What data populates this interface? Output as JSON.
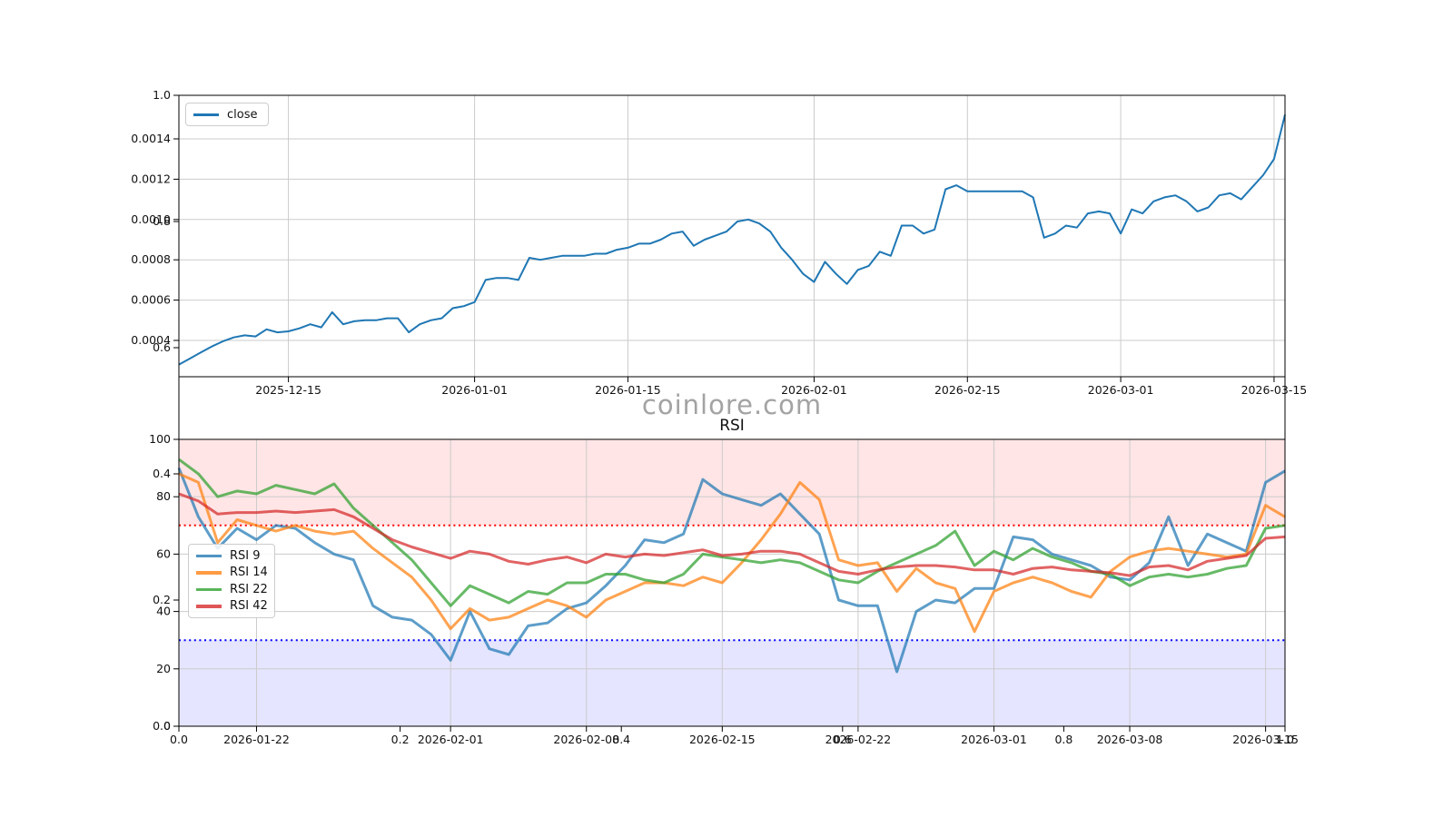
{
  "watermark": "coinlore.com",
  "overlay_axis": {
    "y_tick_labels": [
      "1.0",
      "0.8",
      "0.6",
      "0.4",
      "0.2",
      "0.0"
    ],
    "x_tick_labels": [
      "0.0",
      "0.2",
      "0.4",
      "0.6",
      "0.8",
      "1.0"
    ]
  },
  "chart_data": [
    {
      "type": "line",
      "name": "price-chart",
      "x_start_date": "2025-12-05",
      "x_interval": "1 day",
      "x_tick_labels": [
        "2025-12-15",
        "2026-01-01",
        "2026-01-15",
        "2026-02-01",
        "2026-02-15",
        "2026-03-01",
        "2026-03-15"
      ],
      "x_tick_day_offsets": [
        10,
        27,
        41,
        58,
        72,
        86,
        100
      ],
      "y_tick_labels": [
        "0.0014",
        "0.0012",
        "0.0010",
        "0.0008",
        "0.0006",
        "0.0004"
      ],
      "y_tick_values": [
        0.0014,
        0.0012,
        0.001,
        0.0008,
        0.0006,
        0.0004
      ],
      "ylim": [
        0.000225,
        0.001617
      ],
      "grid": true,
      "legend_position": "upper-left",
      "series": [
        {
          "name": "close",
          "color": "#1f77b4",
          "values": [
            0.00028,
            0.00031,
            0.00034,
            0.00037,
            0.000395,
            0.000415,
            0.000425,
            0.00042,
            0.000455,
            0.00044,
            0.000445,
            0.00046,
            0.00048,
            0.000465,
            0.00054,
            0.00048,
            0.000495,
            0.0005,
            0.0005,
            0.00051,
            0.00051,
            0.00044,
            0.00048,
            0.0005,
            0.00051,
            0.00056,
            0.00057,
            0.00059,
            0.0007,
            0.00071,
            0.00071,
            0.0007,
            0.00081,
            0.0008,
            0.00081,
            0.00082,
            0.00082,
            0.00082,
            0.00083,
            0.00083,
            0.00085,
            0.00086,
            0.00088,
            0.00088,
            0.0009,
            0.00093,
            0.00094,
            0.00087,
            0.0009,
            0.00092,
            0.00094,
            0.00099,
            0.001,
            0.00098,
            0.00094,
            0.00086,
            0.0008,
            0.00073,
            0.00069,
            0.00079,
            0.00073,
            0.00068,
            0.00075,
            0.00077,
            0.00084,
            0.00082,
            0.00097,
            0.00097,
            0.00093,
            0.00095,
            0.00115,
            0.00117,
            0.00114,
            0.00114,
            0.00114,
            0.00114,
            0.00114,
            0.00114,
            0.00111,
            0.00091,
            0.00093,
            0.00097,
            0.00096,
            0.00103,
            0.00104,
            0.00103,
            0.00093,
            0.00105,
            0.00103,
            0.00109,
            0.00111,
            0.00112,
            0.00109,
            0.00104,
            0.00106,
            0.00112,
            0.00113,
            0.0011,
            0.00116,
            0.00122,
            0.0013,
            0.00152
          ]
        }
      ]
    },
    {
      "type": "line",
      "name": "rsi-chart",
      "title": "RSI",
      "x_start_date": "2026-01-18",
      "x_interval": "1 day",
      "x_tick_labels": [
        "2026-01-22",
        "2026-02-01",
        "2026-02-08",
        "2026-02-15",
        "2026-02-22",
        "2026-03-01",
        "2026-03-08",
        "2026-03-15"
      ],
      "x_tick_day_offsets": [
        4,
        14,
        21,
        28,
        35,
        42,
        49,
        56
      ],
      "y_tick_labels": [
        "100",
        "80",
        "60",
        "40",
        "20",
        "0"
      ],
      "y_tick_values": [
        100,
        80,
        60,
        40,
        20,
        0
      ],
      "ylim": [
        0,
        100
      ],
      "grid": true,
      "overbought_level": 70,
      "oversold_level": 30,
      "overbought_band": [
        70,
        100
      ],
      "oversold_band": [
        0,
        30
      ],
      "band_colors": {
        "overbought": "rgba(255,0,0,0.10)",
        "oversold": "rgba(0,0,255,0.10)"
      },
      "ref_line_colors": {
        "overbought": "#ff0000",
        "oversold": "#0000ff"
      },
      "legend_position": "center-left",
      "series": [
        {
          "name": "RSI 9",
          "color": "#1f77b4",
          "values": [
            90,
            73,
            62,
            69,
            65,
            70,
            69,
            64,
            60,
            58,
            42,
            38,
            37,
            32,
            23,
            40,
            27,
            25,
            35,
            36,
            41,
            43,
            49,
            56,
            65,
            64,
            67,
            86,
            81,
            79,
            77,
            81,
            74,
            67,
            44,
            42,
            42,
            19,
            40,
            44,
            43,
            48,
            48,
            66,
            65,
            60,
            58,
            56,
            52,
            51,
            57,
            73,
            56,
            67,
            64,
            61,
            85,
            89
          ]
        },
        {
          "name": "RSI 14",
          "color": "#ff7f0e",
          "values": [
            88,
            85,
            64,
            72,
            70,
            68,
            70,
            68,
            67,
            68,
            62,
            57,
            52,
            44,
            34,
            41,
            37,
            38,
            41,
            44,
            42,
            38,
            44,
            47,
            50,
            50,
            49,
            52,
            50,
            57,
            65,
            74,
            85,
            79,
            58,
            56,
            57,
            47,
            55,
            50,
            48,
            33,
            47,
            50,
            52,
            50,
            47,
            45,
            54,
            59,
            61,
            62,
            61,
            60,
            59,
            60,
            77,
            73
          ]
        },
        {
          "name": "RSI 22",
          "color": "#2ca02c",
          "values": [
            93,
            88,
            80,
            82,
            81,
            84,
            82.5,
            81,
            84.5,
            76,
            70,
            64,
            58,
            50,
            42,
            49,
            46,
            43,
            47,
            46,
            50,
            50,
            53,
            53,
            51,
            50,
            53,
            60,
            59,
            58,
            57,
            58,
            57,
            54,
            51,
            50,
            54,
            57,
            60,
            63,
            68,
            56,
            61,
            58,
            62,
            59,
            57,
            54,
            53,
            49,
            52,
            53,
            52,
            53,
            55,
            56,
            69,
            70
          ]
        },
        {
          "name": "RSI 42",
          "color": "#d62728",
          "values": [
            81,
            78.5,
            74,
            74.5,
            74.5,
            75,
            74.5,
            75,
            75.5,
            73,
            69,
            65,
            62.5,
            60.5,
            58.5,
            61,
            60,
            57.5,
            56.5,
            58,
            59,
            57,
            60,
            59,
            60,
            59.5,
            60.5,
            61.5,
            59.5,
            60,
            61,
            61,
            60,
            57,
            54,
            53,
            54.5,
            55.5,
            56,
            56,
            55.5,
            54.5,
            54.5,
            53,
            55,
            55.5,
            54.5,
            54,
            53.5,
            52.5,
            55.5,
            56,
            54.5,
            57.5,
            58.5,
            59.5,
            65.5,
            66
          ]
        }
      ]
    }
  ]
}
